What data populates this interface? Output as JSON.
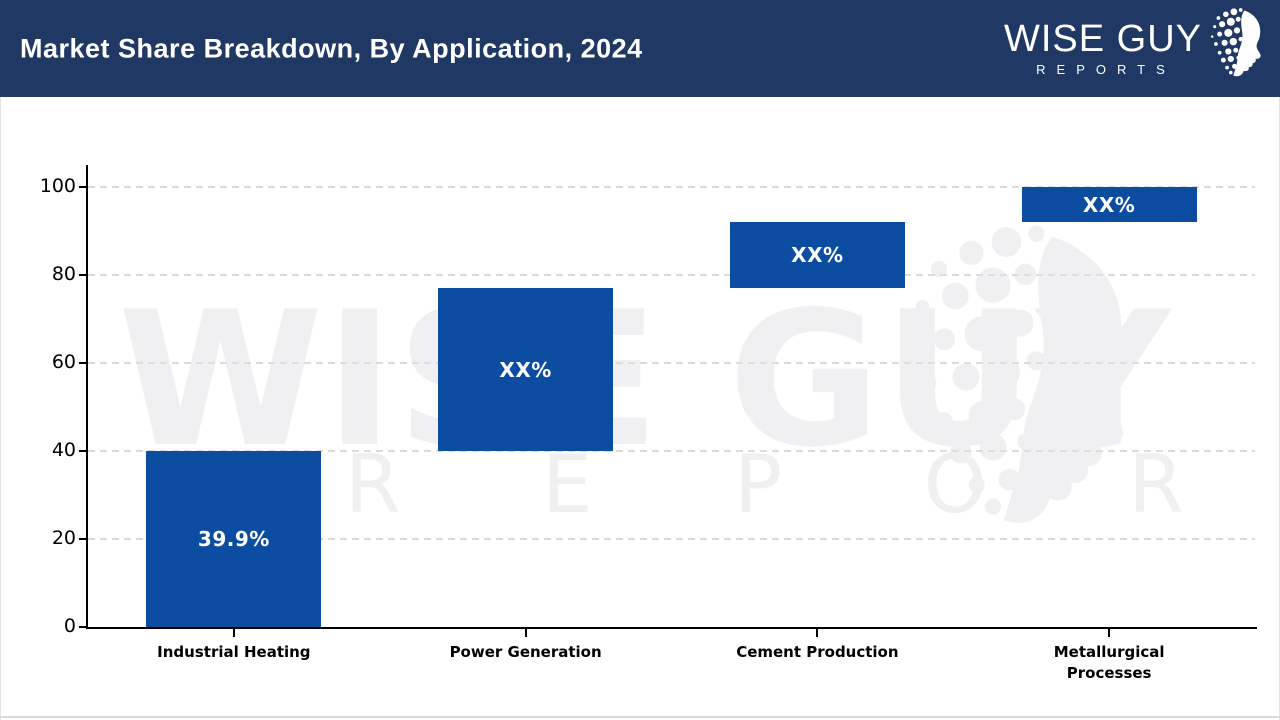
{
  "header": {
    "title": "Market Share Breakdown, By Application, 2024",
    "logo_line1": "WISE GUY",
    "logo_line2": "REPORTS",
    "bg_color": "#1f3864"
  },
  "watermark": {
    "line1": "WISE GUY",
    "line2": "R E P O R T S",
    "color": "#f0f0f2"
  },
  "chart_data": {
    "type": "bar",
    "subtype": "waterfall",
    "title": "Market Share Breakdown, By Application, 2024",
    "categories": [
      "Industrial Heating",
      "Power Generation",
      "Cement Production",
      "Metallurgical Processes"
    ],
    "segments": [
      {
        "category": "Industrial Heating",
        "start": 0,
        "end": 39.9,
        "label": "39.9%"
      },
      {
        "category": "Power Generation",
        "start": 39.9,
        "end": 77,
        "label": "XX%"
      },
      {
        "category": "Cement Production",
        "start": 77,
        "end": 92,
        "label": "XX%"
      },
      {
        "category": "Metallurgical Processes",
        "start": 92,
        "end": 100,
        "label": "XX%"
      }
    ],
    "xlabel": "",
    "ylabel": "",
    "ylim": [
      0,
      105
    ],
    "yticks": [
      0,
      20,
      40,
      60,
      80,
      100
    ],
    "grid": "horizontal dashed",
    "legend": "none",
    "bar_color": "#0c4da2",
    "bar_label_color": "#ffffff",
    "axis_color": "#000000"
  }
}
